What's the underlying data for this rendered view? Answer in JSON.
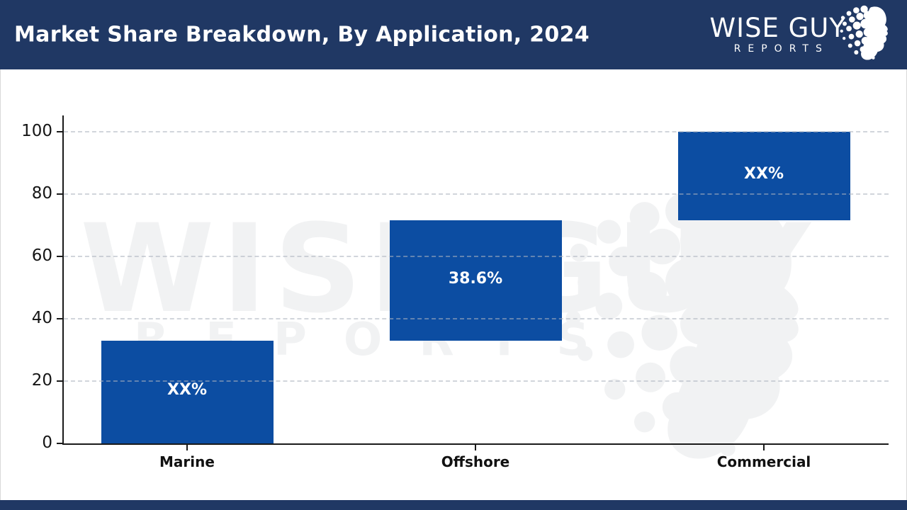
{
  "header": {
    "title": "Market Share Breakdown, By Application, 2024",
    "logo": {
      "line1": "WISE GUY",
      "line2": "REPORTS",
      "icon": "dotted-head-profile"
    }
  },
  "watermark": {
    "line1": "WISE GUY",
    "line2": "REPORTS",
    "icon": "dotted-head-profile"
  },
  "chart_data": {
    "type": "bar",
    "subtype": "floating-waterfall",
    "title": "Market Share Breakdown, By Application, 2024",
    "categories": [
      "Marine",
      "Offshore",
      "Commercial"
    ],
    "segments": [
      {
        "category": "Marine",
        "base": 0,
        "top": 33,
        "label": "XX%"
      },
      {
        "category": "Offshore",
        "base": 33,
        "top": 71.6,
        "label": "38.6%"
      },
      {
        "category": "Commercial",
        "base": 71.6,
        "top": 100,
        "label": "XX%"
      }
    ],
    "yticks": [
      0,
      20,
      40,
      60,
      80,
      100
    ],
    "ylim": [
      0,
      105
    ],
    "xlabel": "",
    "ylabel": "",
    "grid": "horizontal-dashed, drawn over bars",
    "legend": "none",
    "bar_color": "#0c4da2",
    "bar_label_color": "#ffffff"
  },
  "colors": {
    "header_bg": "#203864",
    "footer_bg": "#203864",
    "bar": "#0c4da2",
    "axis": "#1a1a1a",
    "gridline": "#d4d8de",
    "watermark": "#f1f2f3",
    "background": "#ffffff",
    "title_text": "#ffffff"
  }
}
